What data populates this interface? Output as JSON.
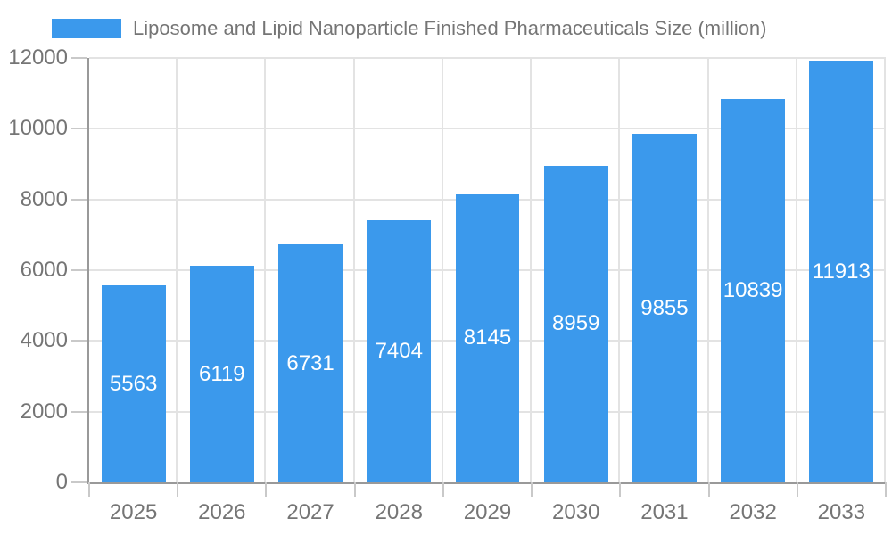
{
  "chart_data": {
    "type": "bar",
    "title": "Liposome and Lipid Nanoparticle Finished Pharmaceuticals Size (million)",
    "categories": [
      "2025",
      "2026",
      "2027",
      "2028",
      "2029",
      "2030",
      "2031",
      "2032",
      "2033"
    ],
    "values": [
      5563,
      6119,
      6731,
      7404,
      8145,
      8959,
      9855,
      10839,
      11913
    ],
    "xlabel": "",
    "ylabel": "",
    "ylim": [
      0,
      12000
    ],
    "yticks": [
      0,
      2000,
      4000,
      6000,
      8000,
      10000,
      12000
    ],
    "grid": true,
    "legend_position": "top-left",
    "bar_labels_visible": true
  },
  "colors": {
    "bar": "#3B99EC",
    "axis": "#999999",
    "tick": "#C9C9C9",
    "gridline": "#E3E3E3",
    "text": "#757575",
    "bar_label": "#FFFFFF",
    "background": "#FFFFFF"
  }
}
